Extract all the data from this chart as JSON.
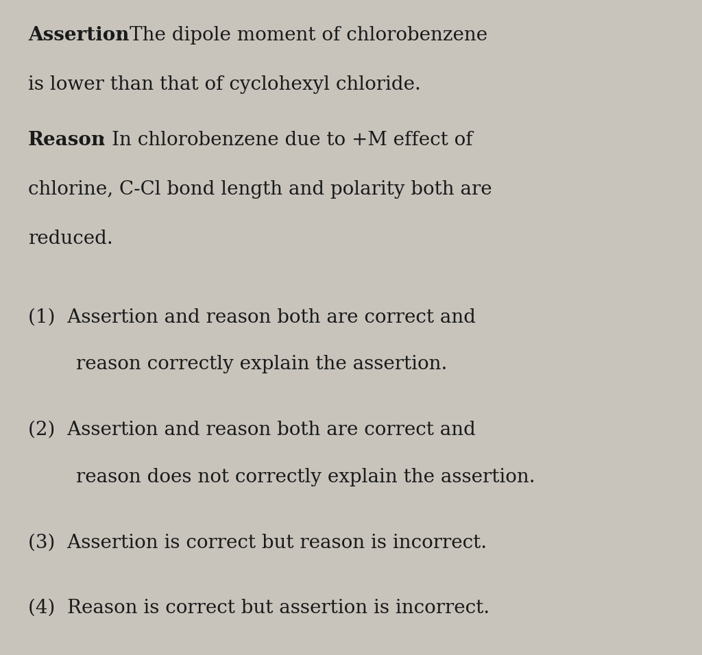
{
  "background_color": "#c8c4bc",
  "text_color": "#1a1a1a",
  "font_size_body": 20,
  "assertion_label": "Assertion",
  "assertion_colon": " : ",
  "assertion_text": "The dipole moment of chlorobenzene\nis lower than that of cyclohexyl chloride.",
  "reason_label": "Reason",
  "reason_colon": " : ",
  "reason_text": "In chlorobenzene due to +M effect of\nchlorine, C-Cl bond length and polarity both are\nreduced.",
  "options": [
    "(1)  Assertion and reason both are correct and\n       reason correctly explain the assertion.",
    "(2)  Assertion and reason both are correct and\n       reason does not correctly explain the assertion.",
    "(3)  Assertion is correct but reason is incorrect.",
    "(4)  Reason is correct but assertion is incorrect."
  ]
}
